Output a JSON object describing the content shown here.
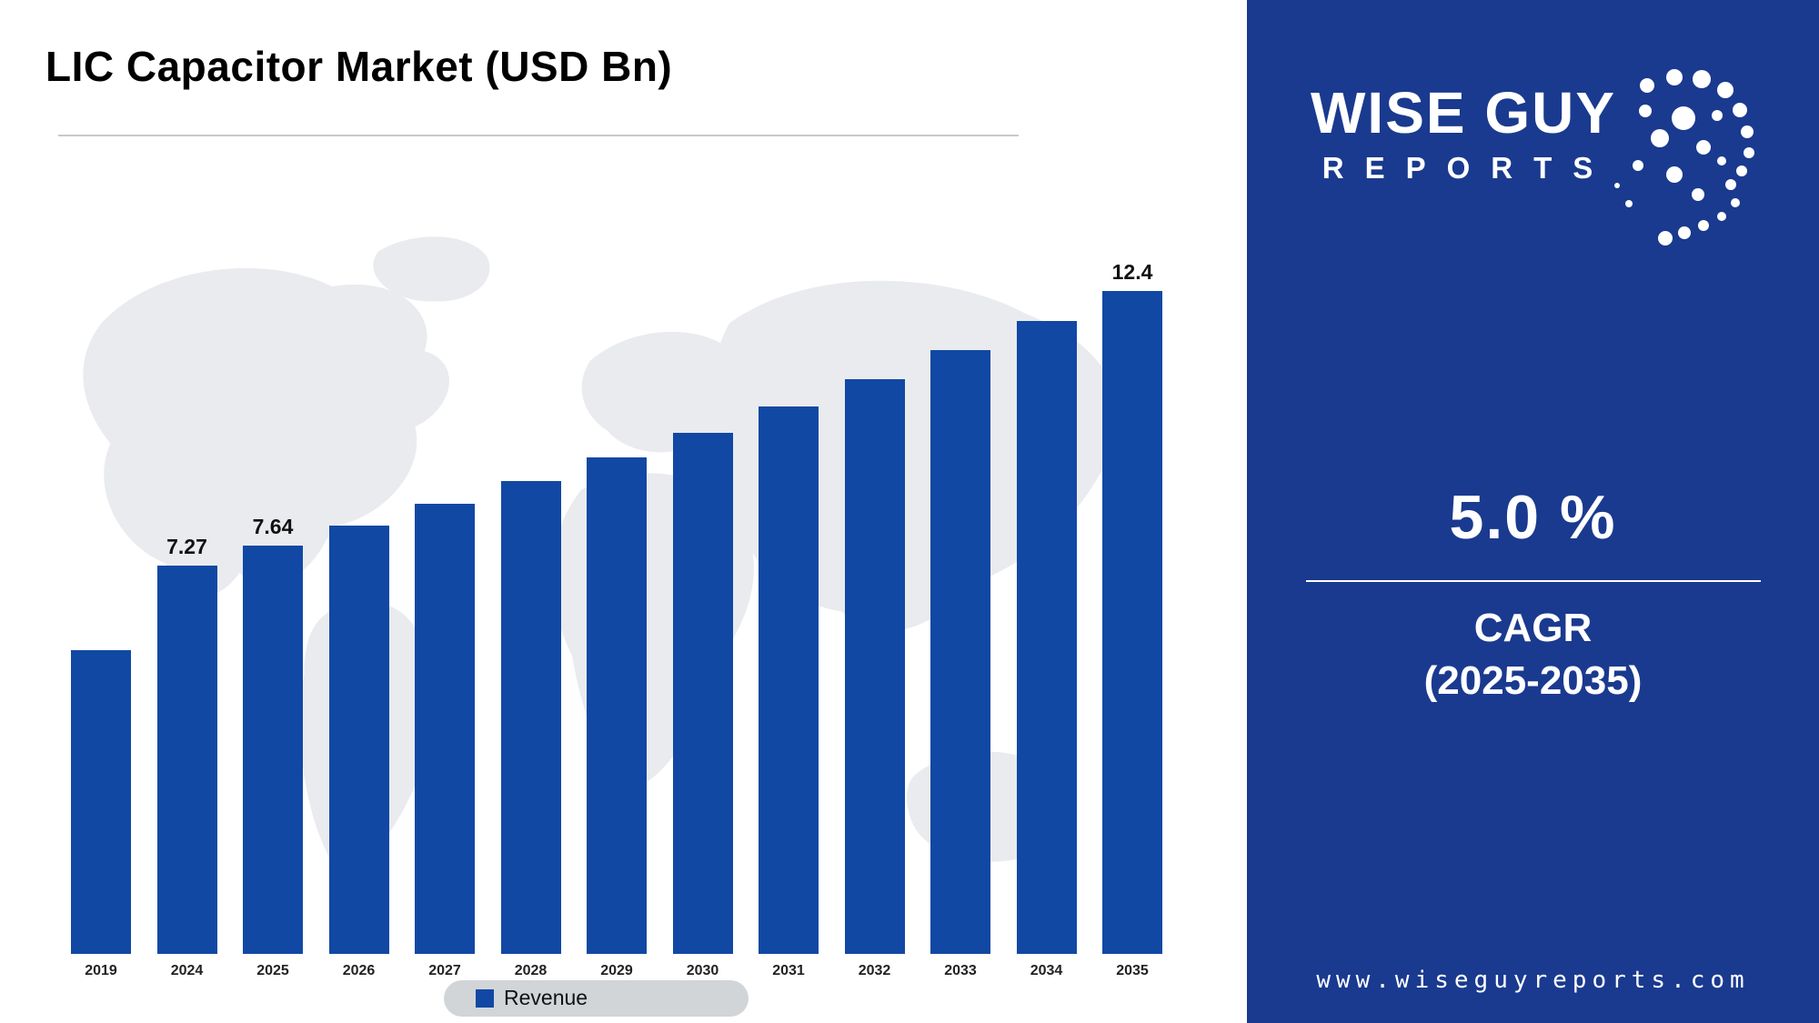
{
  "header": {
    "title": "LIC Capacitor Market (USD Bn)"
  },
  "chart_data": {
    "type": "bar",
    "title": "LIC Capacitor Market (USD Bn)",
    "categories": [
      "2019",
      "2024",
      "2025",
      "2026",
      "2027",
      "2028",
      "2029",
      "2030",
      "2031",
      "2032",
      "2033",
      "2034",
      "2035"
    ],
    "values": [
      5.68,
      7.27,
      7.64,
      8.02,
      8.42,
      8.85,
      9.29,
      9.75,
      10.24,
      10.75,
      11.29,
      11.85,
      12.4
    ],
    "labels": [
      "",
      "7.27",
      "7.64",
      "",
      "",
      "",
      "",
      "",
      "",
      "",
      "",
      "",
      "12.4"
    ],
    "xlabel": "",
    "ylabel": "",
    "ylim": [
      0,
      13
    ],
    "grid": false,
    "bar_color": "#1148a4",
    "legend_position": "bottom",
    "legend": [
      {
        "label": "Revenue",
        "color": "#1148a4"
      }
    ]
  },
  "side_panel": {
    "background": "#1a3a8f",
    "logo_line1": "WISE GUY",
    "logo_line2": "REPORTS",
    "cagr_value": "5.0 %",
    "cagr_label1": "CAGR",
    "cagr_label2": "(2025-2035)",
    "website": "www.wiseguyreports.com"
  }
}
